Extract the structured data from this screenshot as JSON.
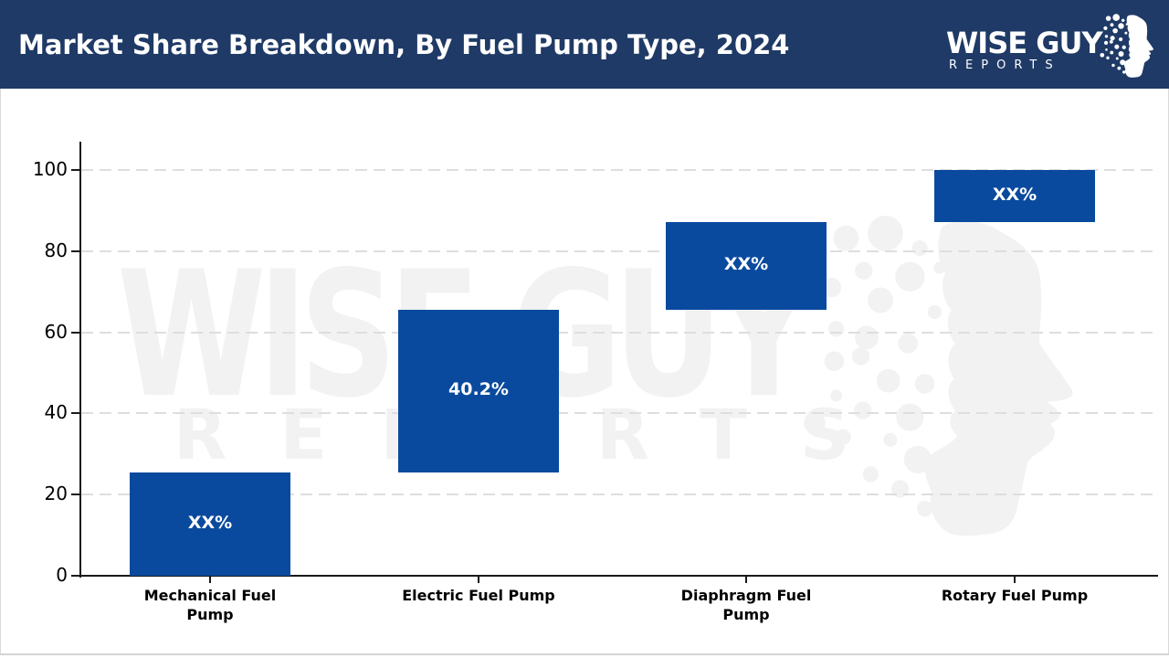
{
  "header": {
    "title": "Market Share Breakdown, By Fuel Pump Type, 2024",
    "bg_color": "#1F3A66",
    "logo": {
      "name": "WISE GUY",
      "sub": "REPORTS"
    }
  },
  "watermark": {
    "line1": "WISE GUY",
    "line2": "REPORTS"
  },
  "chart_data": {
    "type": "bar",
    "subtype": "floating_segment_waterfall",
    "title": "Market Share Breakdown, By Fuel Pump Type, 2024",
    "xlabel": "",
    "ylabel": "",
    "categories": [
      "Mechanical Fuel\nPump",
      "Electric Fuel Pump",
      "Diaphragm Fuel\nPump",
      "Rotary Fuel Pump"
    ],
    "segments": [
      {
        "category": "Mechanical Fuel Pump",
        "start": 0,
        "end": 25.4,
        "label": "XX%"
      },
      {
        "category": "Electric Fuel Pump",
        "start": 25.4,
        "end": 65.6,
        "label": "40.2%"
      },
      {
        "category": "Diaphragm Fuel Pump",
        "start": 65.6,
        "end": 87.1,
        "label": "XX%"
      },
      {
        "category": "Rotary Fuel Pump",
        "start": 87.1,
        "end": 100,
        "label": "XX%"
      }
    ],
    "yticks": [
      0,
      20,
      40,
      60,
      80,
      100
    ],
    "ylim": [
      0,
      107
    ],
    "grid": {
      "horizontal": true,
      "style": "dashed",
      "color": "#DEDEDE"
    },
    "legend_position": "none",
    "bar_color": "#0A4A9E",
    "bar_label_color": "#FFFFFF",
    "axis_color": "#1A1A1A"
  }
}
